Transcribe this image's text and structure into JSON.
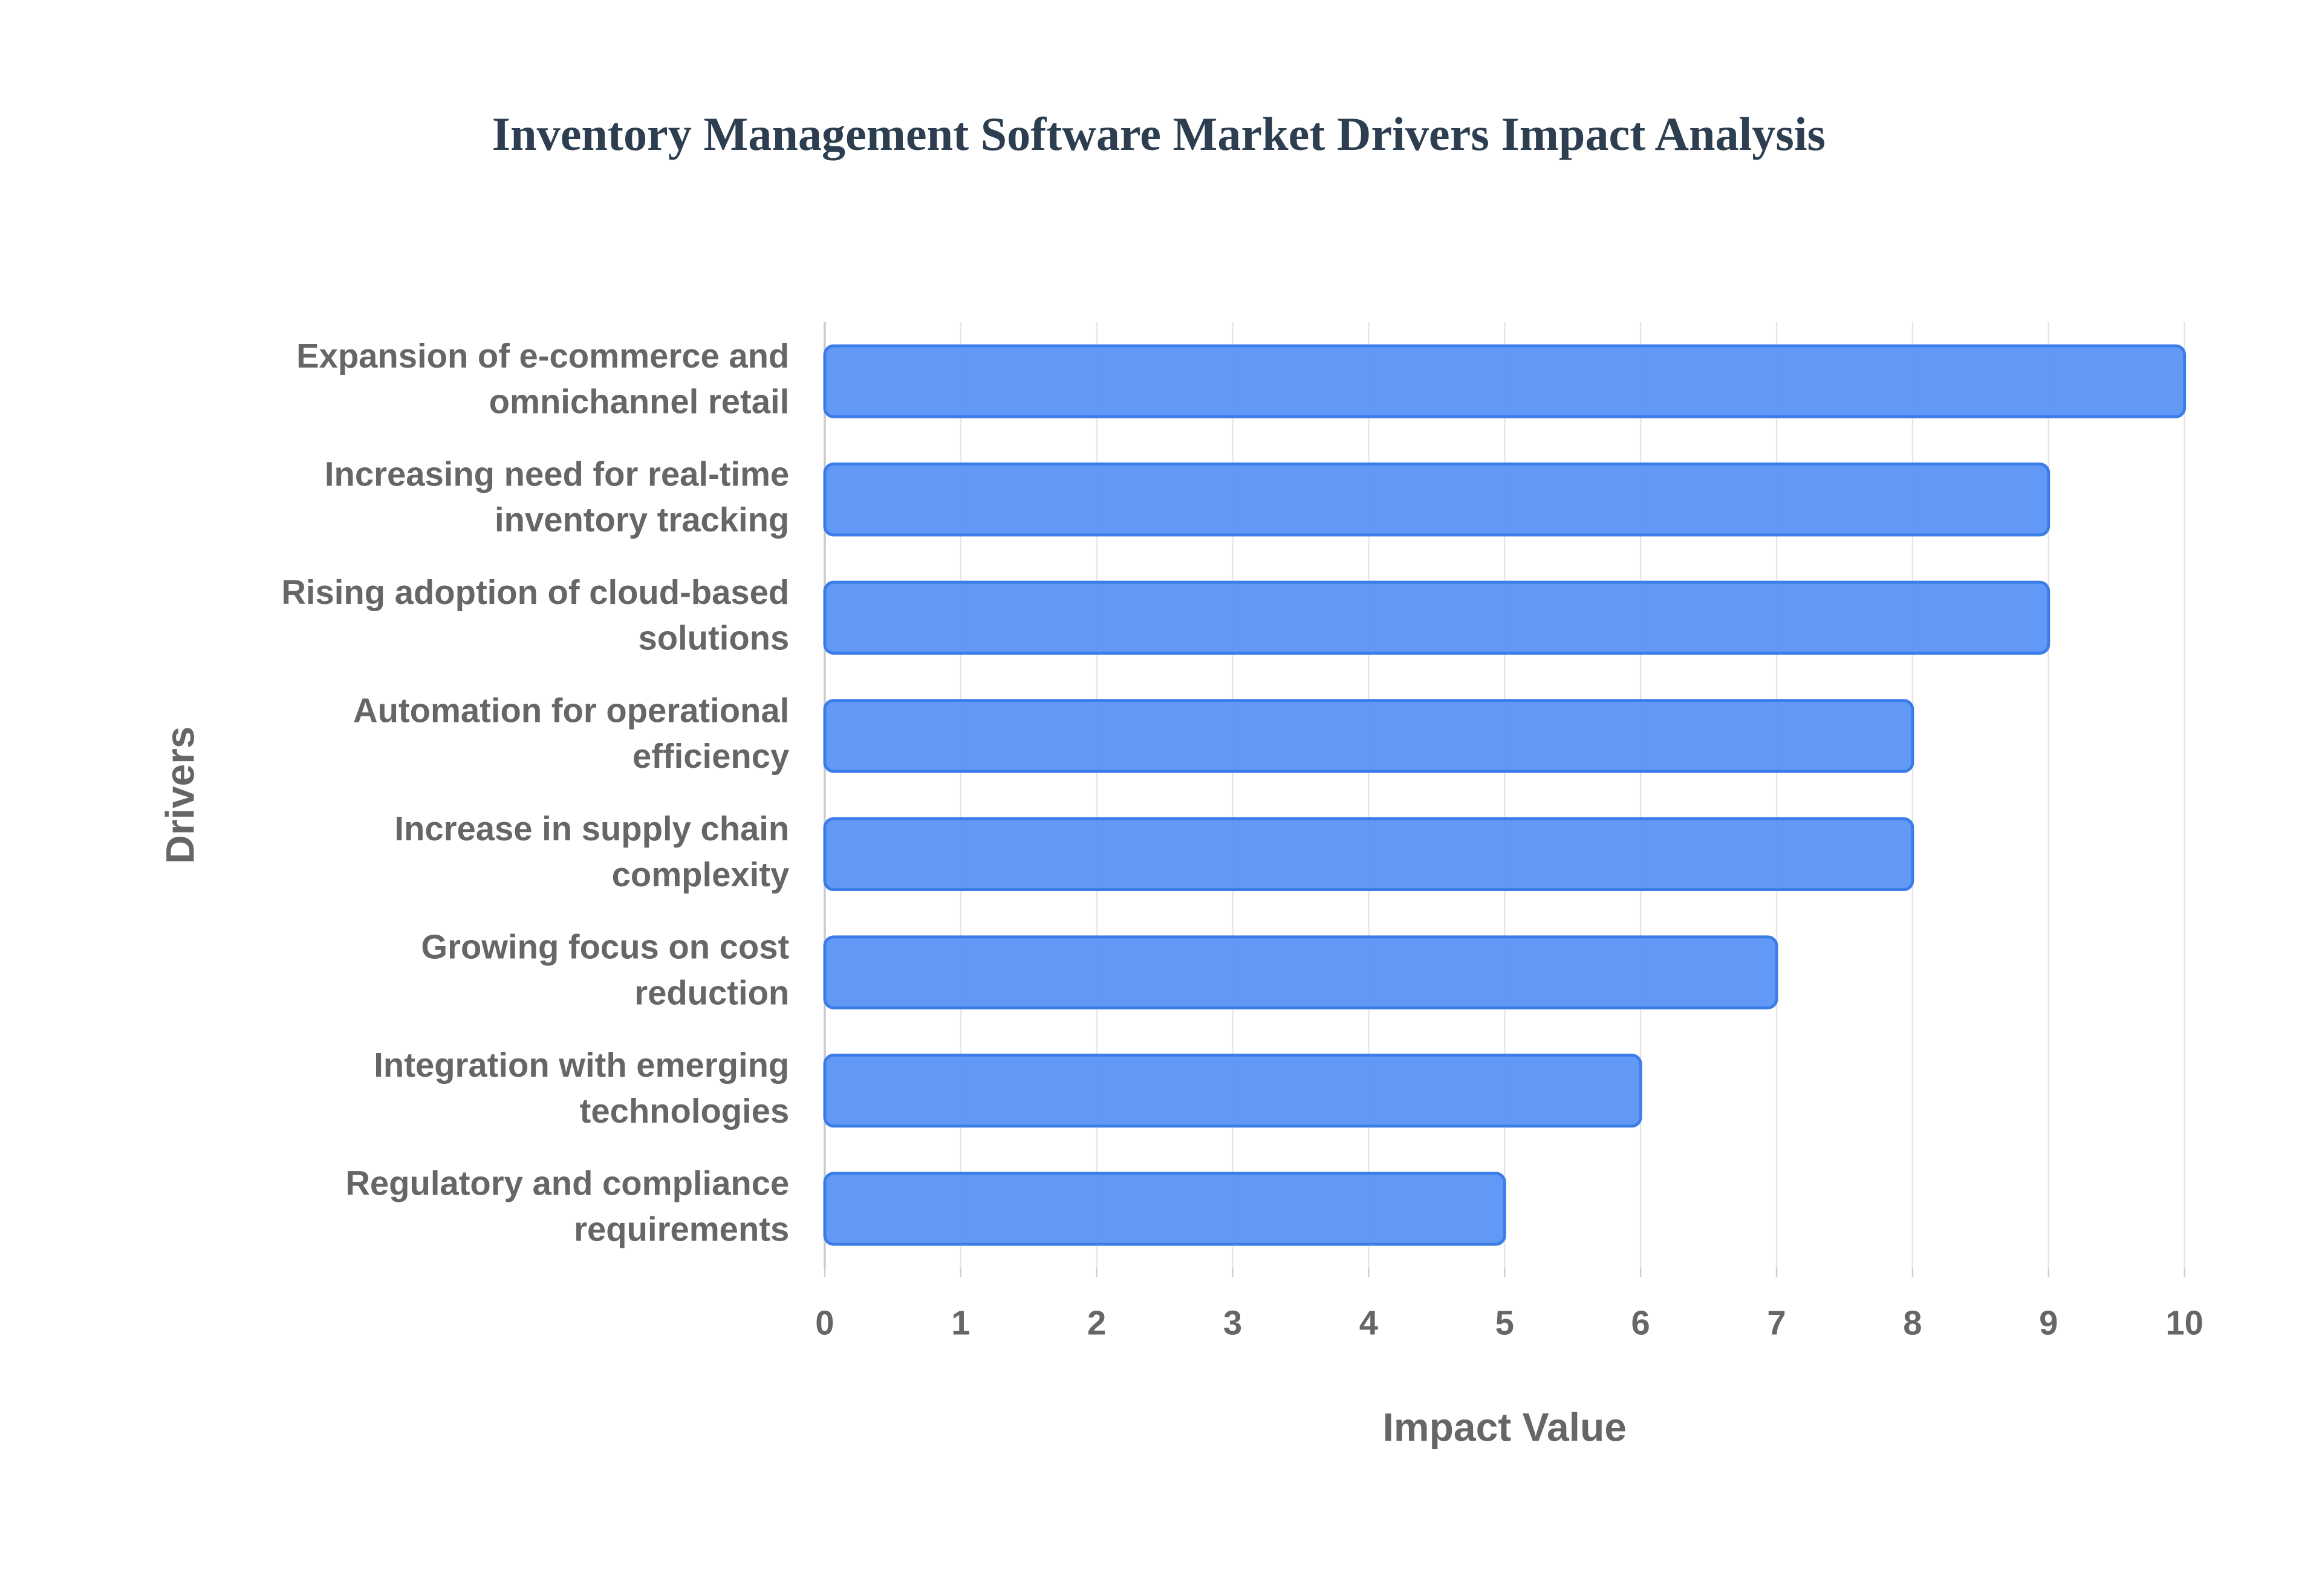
{
  "chart_data": {
    "type": "bar",
    "orientation": "horizontal",
    "title": "Inventory Management Software Market Drivers Impact Analysis",
    "x_label": "Impact Value",
    "y_label": "Drivers",
    "categories": [
      "Expansion of e-commerce and omnichannel retail",
      "Increasing need for real-time inventory tracking",
      "Rising adoption of cloud-based solutions",
      "Automation for operational efficiency",
      "Increase in supply chain complexity",
      "Growing focus on cost reduction",
      "Integration with emerging technologies",
      "Regulatory and compliance requirements"
    ],
    "values": [
      10,
      9,
      9,
      8,
      8,
      7,
      6,
      5
    ],
    "color": "#5b93f5",
    "edge_color": "#3b7de8",
    "xlim": [
      0,
      10
    ],
    "xticks": [
      0,
      1,
      2,
      3,
      4,
      5,
      6,
      7,
      8,
      9,
      10
    ],
    "grid": true
  }
}
